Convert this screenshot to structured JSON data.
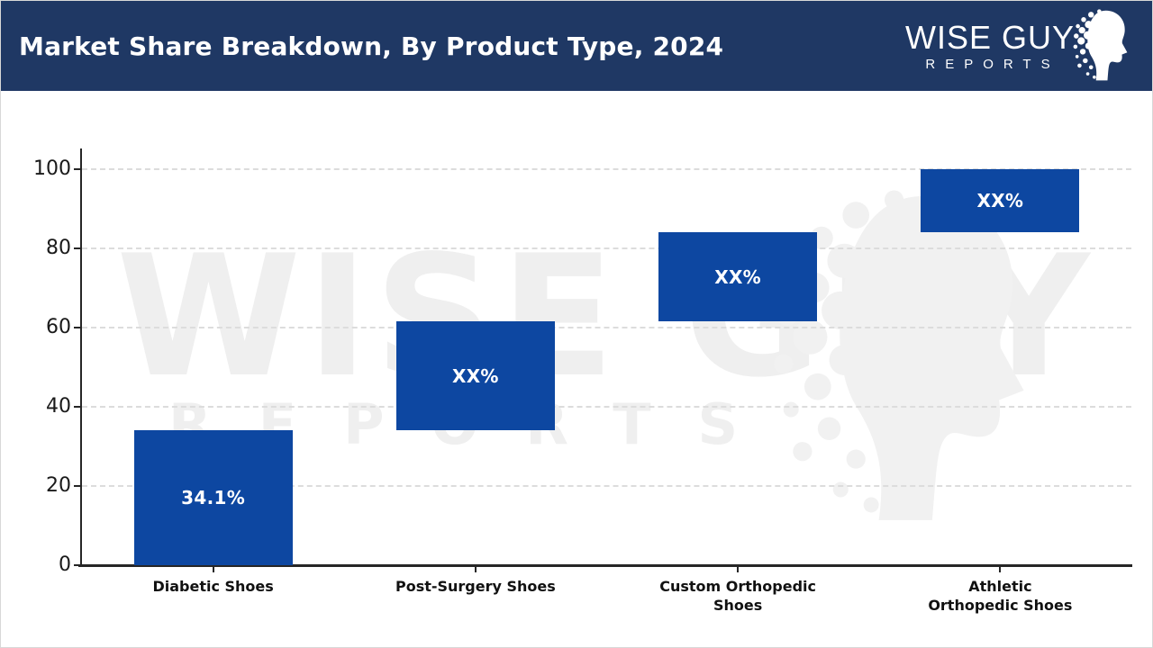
{
  "header": {
    "title": "Market Share Breakdown, By Product Type, 2024",
    "logo": {
      "line1": "WISE GUY",
      "line2": "REPORTS"
    }
  },
  "watermark": {
    "line1": "WISE GUY",
    "line2": "REPORTS"
  },
  "colors": {
    "header_bg": "#1f3864",
    "bar": "#0d47a1",
    "bar_label": "#ffffff",
    "axis": "#262626",
    "grid": "#dcdcdc",
    "tick_label": "#1a1a1a",
    "watermark": "#efefef"
  },
  "chart_data": {
    "type": "bar",
    "subtype": "floating_segment_waterfall",
    "title": "Market Share Breakdown, By Product Type, 2024",
    "xlabel": "",
    "ylabel": "",
    "ylim": [
      0,
      100
    ],
    "y_ticks": [
      0,
      20,
      40,
      60,
      80,
      100
    ],
    "grid": "horizontal-dashed",
    "legend": "none",
    "categories": [
      "Diabetic Shoes",
      "Post-Surgery Shoes",
      "Custom Orthopedic Shoes",
      "Athletic Orthopedic Shoes"
    ],
    "category_label_lines": [
      [
        "Diabetic Shoes"
      ],
      [
        "Post-Surgery Shoes"
      ],
      [
        "Custom Orthopedic",
        "Shoes"
      ],
      [
        "Athletic",
        "Orthopedic Shoes"
      ]
    ],
    "segments": [
      {
        "category": "Diabetic Shoes",
        "start": 0,
        "end": 34.1,
        "label": "34.1%"
      },
      {
        "category": "Post-Surgery Shoes",
        "start": 34.1,
        "end": 61.5,
        "label": "XX%"
      },
      {
        "category": "Custom Orthopedic Shoes",
        "start": 61.5,
        "end": 84.1,
        "label": "XX%"
      },
      {
        "category": "Athletic Orthopedic Shoes",
        "start": 84.1,
        "end": 100,
        "label": "XX%"
      }
    ]
  }
}
